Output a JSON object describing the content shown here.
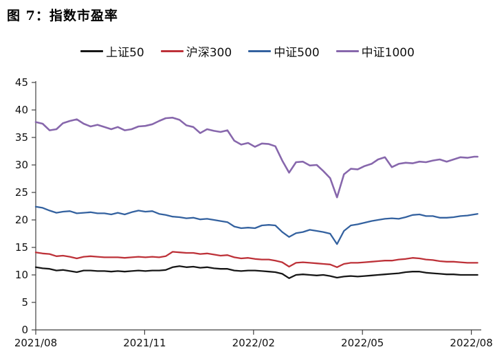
{
  "page": {
    "title": "图 7：指数市盈率"
  },
  "chart_data": {
    "type": "line",
    "title": "图 7：指数市盈率",
    "grid": false,
    "legend_position": "top",
    "x_axis": {
      "unit": "months since 2021/08",
      "range": [
        0,
        12.26
      ],
      "tick_months": [
        0,
        3,
        6,
        9,
        12
      ],
      "tick_labels": [
        "2021/08",
        "2021/11",
        "2022/02",
        "2022/05",
        "2022/08"
      ]
    },
    "y_axis": {
      "min": 0,
      "max": 45,
      "tick_step": 5,
      "ticks": [
        0,
        5,
        10,
        15,
        20,
        25,
        30,
        35,
        40,
        45
      ]
    },
    "x_months": [
      0,
      0.19,
      0.38,
      0.57,
      0.75,
      0.94,
      1.13,
      1.32,
      1.51,
      1.7,
      1.89,
      2.08,
      2.26,
      2.45,
      2.64,
      2.83,
      3.02,
      3.21,
      3.4,
      3.58,
      3.77,
      3.96,
      4.15,
      4.34,
      4.53,
      4.72,
      4.91,
      5.09,
      5.28,
      5.47,
      5.66,
      5.85,
      6.04,
      6.23,
      6.42,
      6.6,
      6.79,
      6.98,
      7.17,
      7.36,
      7.55,
      7.74,
      7.92,
      8.11,
      8.3,
      8.49,
      8.68,
      8.87,
      9.06,
      9.25,
      9.43,
      9.62,
      9.81,
      10,
      10.19,
      10.38,
      10.57,
      10.75,
      10.94,
      11.13,
      11.32,
      11.51,
      11.7,
      11.89,
      12.08,
      12.17
    ],
    "series": [
      {
        "name": "上证50",
        "color": "#161616",
        "values": [
          11.4,
          11.2,
          11.1,
          10.8,
          10.9,
          10.7,
          10.5,
          10.8,
          10.8,
          10.7,
          10.7,
          10.6,
          10.7,
          10.6,
          10.7,
          10.8,
          10.7,
          10.8,
          10.8,
          10.9,
          11.4,
          11.6,
          11.4,
          11.5,
          11.3,
          11.4,
          11.2,
          11.1,
          11.1,
          10.8,
          10.7,
          10.8,
          10.8,
          10.7,
          10.6,
          10.5,
          10.2,
          9.4,
          10,
          10.1,
          10,
          9.9,
          10,
          9.8,
          9.5,
          9.7,
          9.8,
          9.7,
          9.8,
          9.9,
          10,
          10.1,
          10.2,
          10.3,
          10.5,
          10.6,
          10.6,
          10.4,
          10.3,
          10.2,
          10.1,
          10.1,
          10,
          10,
          10,
          10
        ]
      },
      {
        "name": "沪深300",
        "color": "#bd3138",
        "values": [
          14.1,
          13.9,
          13.8,
          13.4,
          13.5,
          13.3,
          13,
          13.3,
          13.4,
          13.3,
          13.2,
          13.2,
          13.2,
          13.1,
          13.2,
          13.3,
          13.2,
          13.3,
          13.2,
          13.4,
          14.2,
          14.1,
          14,
          14,
          13.8,
          13.9,
          13.7,
          13.5,
          13.6,
          13.2,
          13,
          13.1,
          12.9,
          12.8,
          12.8,
          12.6,
          12.3,
          11.5,
          12.2,
          12.3,
          12.2,
          12.1,
          12,
          11.9,
          11.4,
          12,
          12.2,
          12.2,
          12.3,
          12.4,
          12.5,
          12.6,
          12.6,
          12.8,
          12.9,
          13.1,
          13,
          12.8,
          12.7,
          12.5,
          12.4,
          12.4,
          12.3,
          12.2,
          12.2,
          12.2
        ]
      },
      {
        "name": "中证500",
        "color": "#33619f",
        "values": [
          22.4,
          22.2,
          21.7,
          21.3,
          21.5,
          21.6,
          21.2,
          21.3,
          21.4,
          21.2,
          21.2,
          21,
          21.3,
          21,
          21.4,
          21.7,
          21.5,
          21.6,
          21.1,
          20.9,
          20.6,
          20.5,
          20.3,
          20.4,
          20.1,
          20.2,
          20,
          19.8,
          19.6,
          18.8,
          18.5,
          18.6,
          18.5,
          19,
          19.1,
          19,
          17.8,
          16.9,
          17.6,
          17.8,
          18.2,
          18,
          17.8,
          17.5,
          15.6,
          18,
          19,
          19.2,
          19.5,
          19.8,
          20,
          20.2,
          20.3,
          20.2,
          20.5,
          20.9,
          21,
          20.7,
          20.7,
          20.4,
          20.4,
          20.5,
          20.7,
          20.8,
          21,
          21.1
        ]
      },
      {
        "name": "中证1000",
        "color": "#8767ac",
        "values": [
          37.8,
          37.5,
          36.3,
          36.5,
          37.6,
          38,
          38.3,
          37.5,
          37,
          37.3,
          36.9,
          36.5,
          36.9,
          36.3,
          36.5,
          37,
          37.1,
          37.4,
          38,
          38.5,
          38.6,
          38.2,
          37.2,
          36.9,
          35.8,
          36.5,
          36.2,
          36,
          36.3,
          34.4,
          33.7,
          34,
          33.3,
          33.9,
          33.8,
          33.4,
          30.8,
          28.6,
          30.5,
          30.6,
          29.9,
          30,
          28.9,
          27.6,
          24.1,
          28.3,
          29.3,
          29.2,
          29.8,
          30.2,
          31,
          31.4,
          29.6,
          30.2,
          30.4,
          30.3,
          30.6,
          30.5,
          30.8,
          31,
          30.6,
          31,
          31.4,
          31.3,
          31.5,
          31.5
        ]
      }
    ]
  }
}
